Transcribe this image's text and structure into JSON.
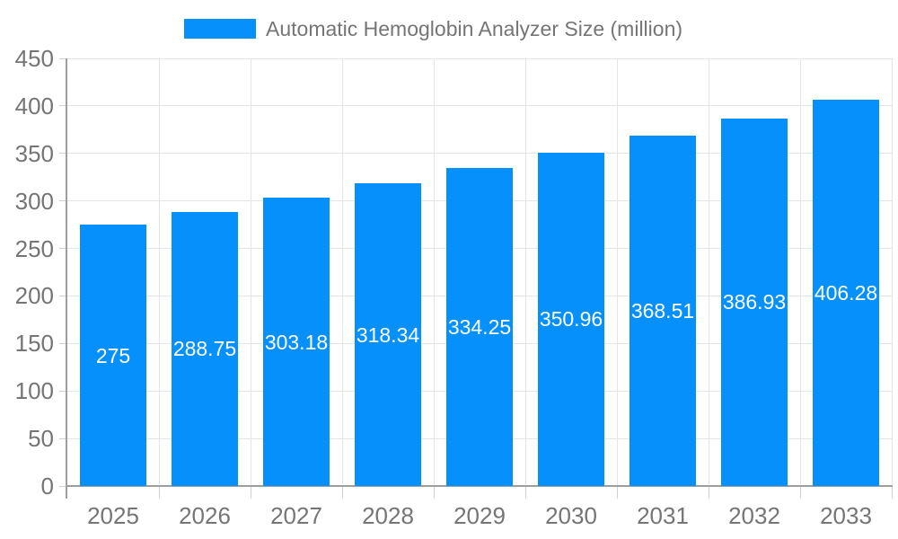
{
  "legend": {
    "label": "Automatic Hemoglobin Analyzer Size (million)",
    "position": "top"
  },
  "colors": {
    "bar": "#0590fb",
    "axis_line": "#9e9e9e",
    "grid": "#e5e5e5",
    "tick": "#cfcfcf",
    "axis_text": "#757575",
    "value_text": "#ffffff",
    "background": "#ffffff"
  },
  "chart_data": {
    "type": "bar",
    "title": "Automatic Hemoglobin Analyzer Size (million)",
    "categories": [
      "2025",
      "2026",
      "2027",
      "2028",
      "2029",
      "2030",
      "2031",
      "2032",
      "2033"
    ],
    "values": [
      275,
      288.75,
      303.18,
      318.34,
      334.25,
      350.96,
      368.51,
      386.93,
      406.28
    ],
    "value_labels": [
      "275",
      "288.75",
      "303.18",
      "318.34",
      "334.25",
      "350.96",
      "368.51",
      "386.93",
      "406.28"
    ],
    "xlabel": "",
    "ylabel": "",
    "ylim": [
      0,
      450
    ],
    "ytick_step": 50,
    "yticks": [
      0,
      50,
      100,
      150,
      200,
      250,
      300,
      350,
      400,
      450
    ],
    "grid": true,
    "legend_position": "top",
    "value_label_position": "center-of-bar"
  }
}
